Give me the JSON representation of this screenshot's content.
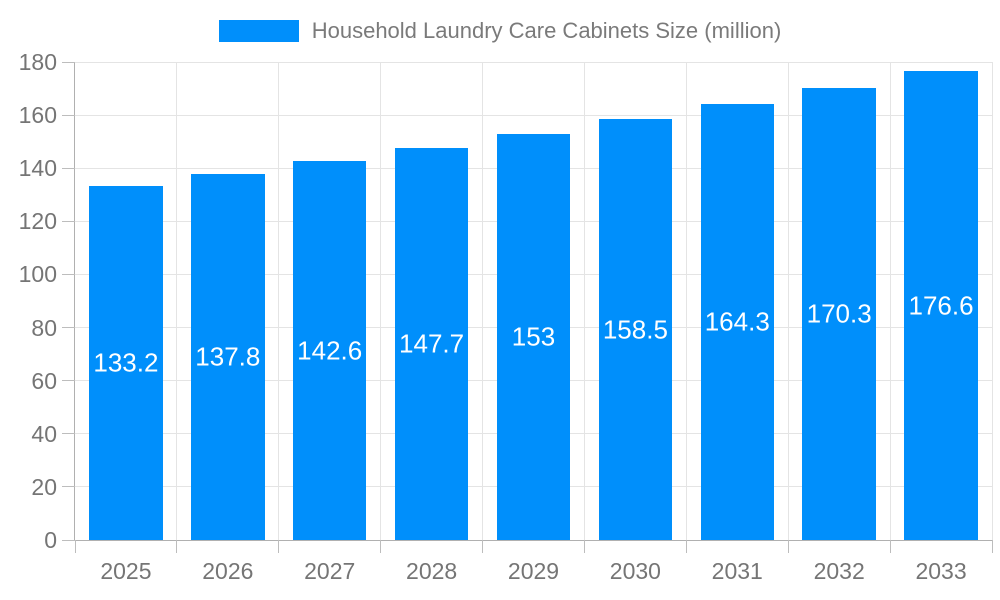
{
  "chart_data": {
    "type": "bar",
    "title": "Household Laundry Care Cabinets Size (million)",
    "legend": {
      "position": "top-center",
      "label": "Household Laundry Care Cabinets Size (million)"
    },
    "categories": [
      "2025",
      "2026",
      "2027",
      "2028",
      "2029",
      "2030",
      "2031",
      "2032",
      "2033"
    ],
    "values": [
      133.2,
      137.8,
      142.6,
      147.7,
      153,
      158.5,
      164.3,
      170.3,
      176.6
    ],
    "xlabel": "",
    "ylabel": "",
    "ylim": [
      0,
      180
    ],
    "ytick_step": 20,
    "yticks": [
      0,
      20,
      40,
      60,
      80,
      100,
      120,
      140,
      160,
      180
    ],
    "grid": "horizontal lines at each y tick; vertical lines at category boundaries",
    "data_labels": "value centered inside each bar, white text",
    "bar_width_fraction": 0.72,
    "colors": {
      "bar": "#008ffb",
      "data_label": "#ffffff",
      "axis_line": "#b0b0b0",
      "tick": "#bdbdbd",
      "gridline": "#e4e4e4",
      "axis_label": "#757575",
      "legend_text": "#7a7a7a",
      "background": "#ffffff"
    }
  }
}
